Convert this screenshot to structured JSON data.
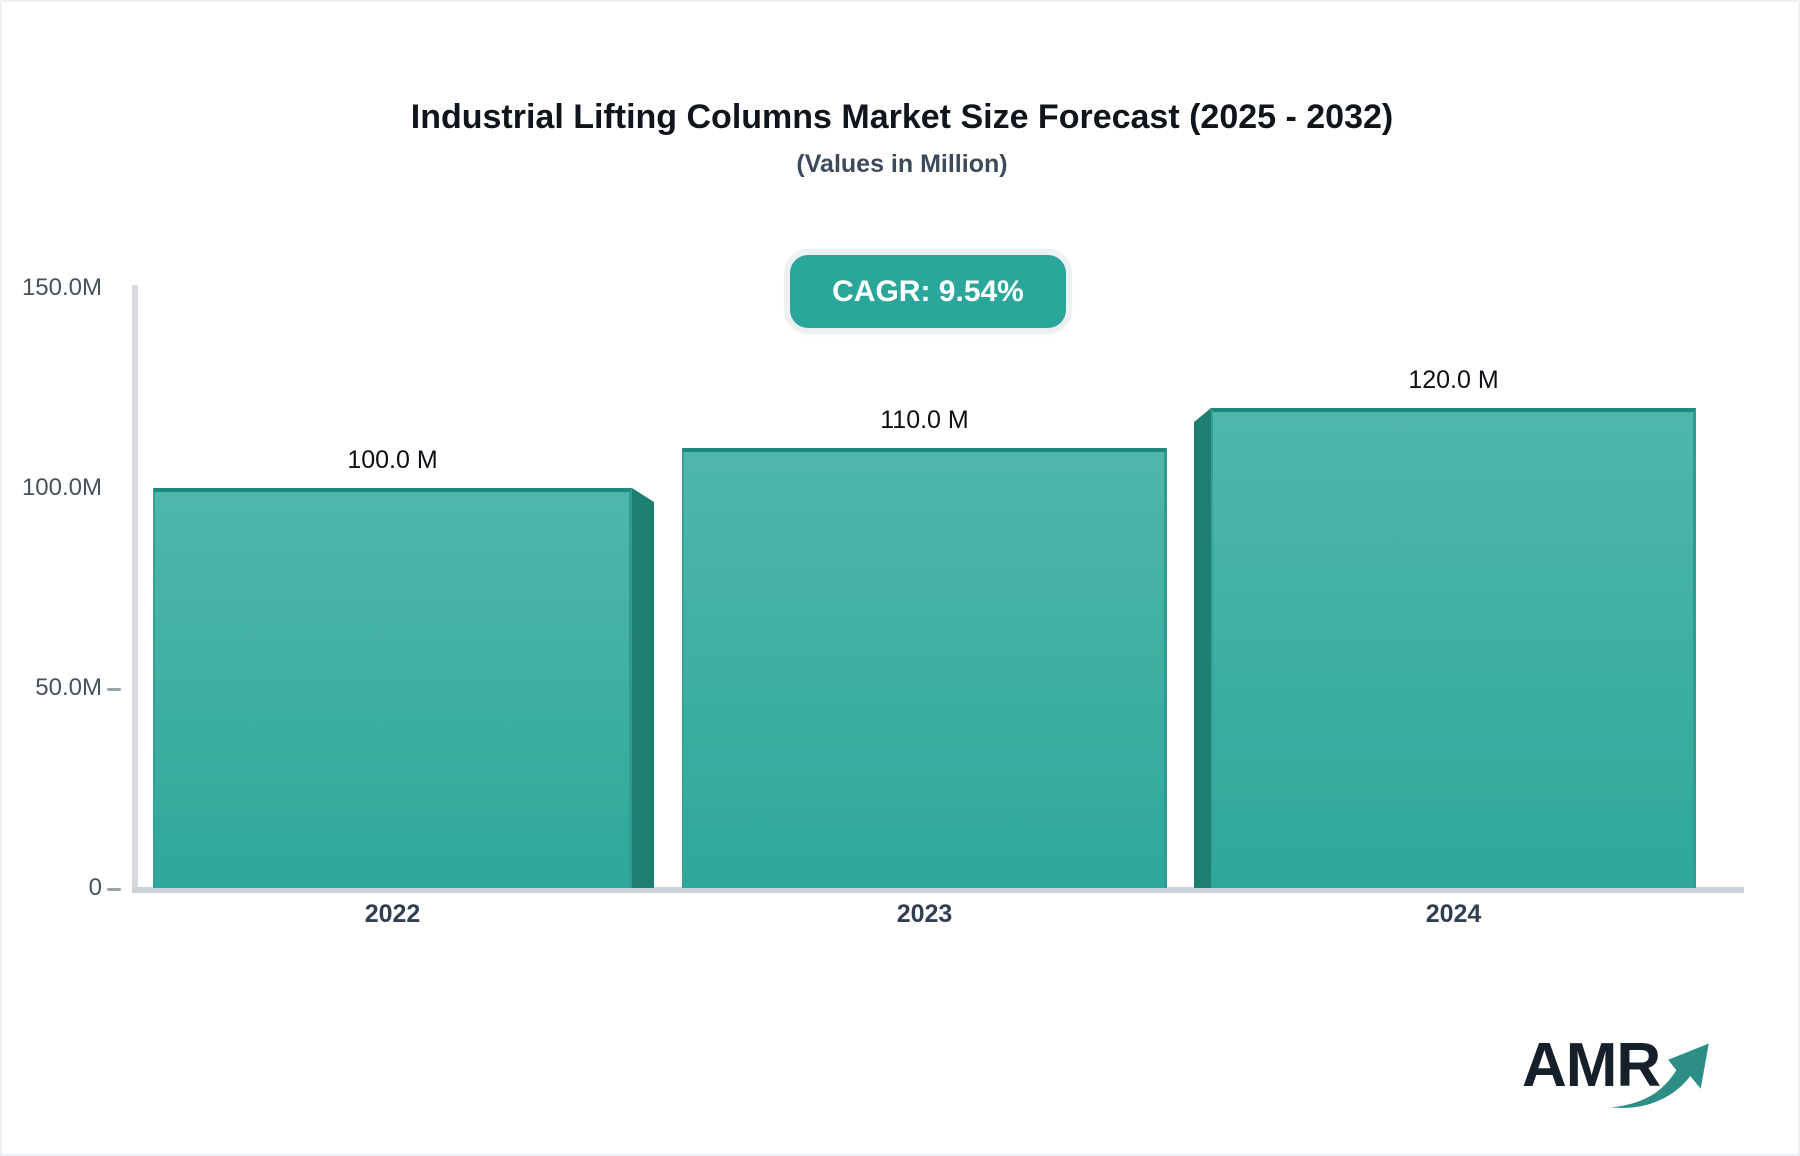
{
  "chart_data": {
    "type": "bar",
    "title": "Industrial Lifting Columns Market Size Forecast (2025 - 2032)",
    "subtitle": "(Values in Million)",
    "badge": "CAGR: 9.54%",
    "categories": [
      "2022",
      "2023",
      "2024"
    ],
    "values": [
      100,
      110,
      120
    ],
    "bar_labels": [
      "100.0 M",
      "110.0 M",
      "120.0 M"
    ],
    "unit": "Million",
    "y_ticks": [
      {
        "label": "150.0M",
        "value": 150
      },
      {
        "label": "100.0M",
        "value": 100
      },
      {
        "label": "50.0M",
        "value": 50
      },
      {
        "label": "0",
        "value": 0
      }
    ],
    "ylim": [
      0,
      150
    ],
    "grid": false,
    "legend": false,
    "colors": {
      "bar_gradient_top": "#50b6aa",
      "bar_gradient_bottom": "#2ea89b",
      "bar_side_shadow": "#1e7e71",
      "badge_background": "#2aa79a",
      "badge_text": "#ffffff",
      "axis_line": "#d7dade",
      "label_text": "#323f52"
    }
  },
  "logo": {
    "text": "AMR"
  }
}
